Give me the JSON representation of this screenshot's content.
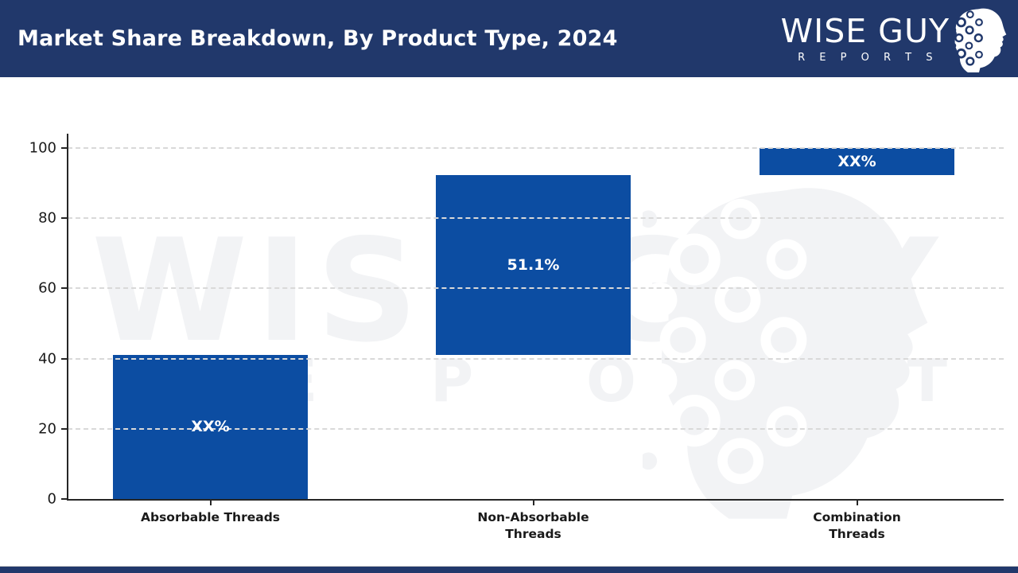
{
  "header": {
    "title": "Market Share Breakdown, By Product Type, 2024",
    "logo": {
      "name_line": "WISE GUY",
      "sub_line": "R E P O R T S"
    }
  },
  "watermark": {
    "words": "WISE GUY",
    "sub": "R E P O R T S"
  },
  "chart_data": {
    "type": "bar",
    "variant": "floating-stacked-range",
    "title": "Market Share Breakdown, By Product Type, 2024",
    "categories": [
      "Absorbable Threads",
      "Non-Absorbable Threads",
      "Combination Threads"
    ],
    "category_lines": [
      [
        "Absorbable Threads"
      ],
      [
        "Non-Absorbable",
        "Threads"
      ],
      [
        "Combination",
        "Threads"
      ]
    ],
    "segments": [
      {
        "category": "Absorbable Threads",
        "start": 0,
        "end": 41.1,
        "label": "XX%"
      },
      {
        "category": "Non-Absorbable Threads",
        "start": 41.1,
        "end": 92.2,
        "label": "51.1%"
      },
      {
        "category": "Combination Threads",
        "start": 92.2,
        "end": 100,
        "label": "XX%"
      }
    ],
    "ylim": [
      0,
      100
    ],
    "yticks": [
      0,
      20,
      40,
      60,
      80,
      100
    ],
    "xlabel": "",
    "ylabel": "",
    "grid": "horizontal-dashed",
    "legend": "none",
    "colors": {
      "bar": "#0c4da2",
      "header_bg": "#21386b",
      "grid": "#d9d9d9",
      "axis": "#262626",
      "watermark": "#f2f3f5",
      "bar_label": "#ffffff",
      "tick_label": "#1a1a1a"
    }
  }
}
